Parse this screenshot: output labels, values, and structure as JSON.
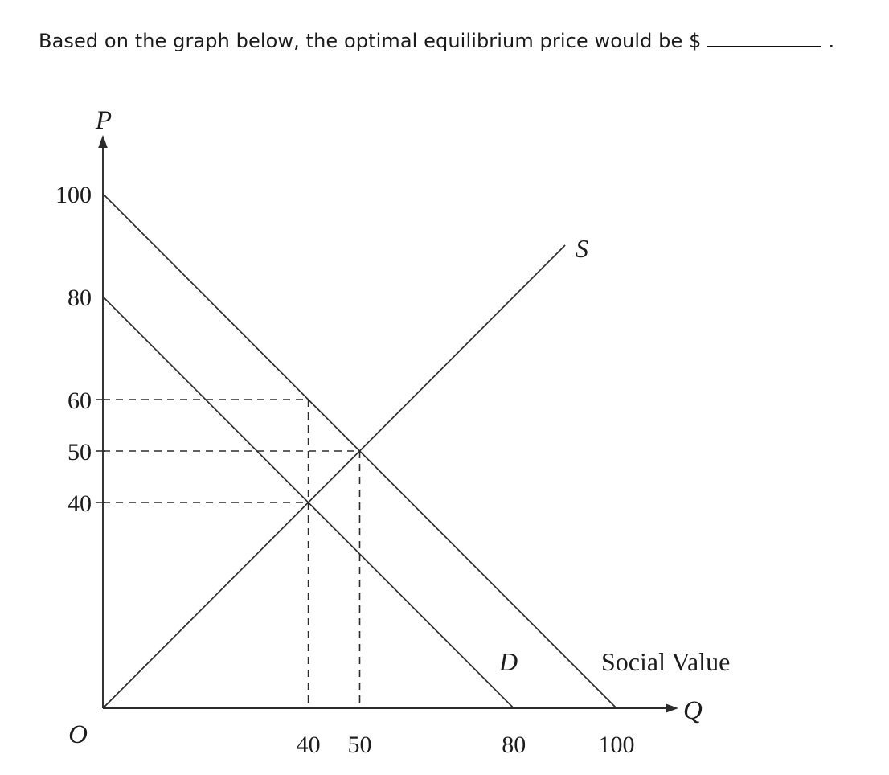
{
  "question": {
    "prefix": "Based on the graph below, the optimal equilibrium price would be $",
    "suffix": "."
  },
  "chart_data": {
    "type": "line",
    "title": "",
    "xlabel": "Q",
    "ylabel": "P",
    "origin_label": "O",
    "xlim": [
      0,
      110
    ],
    "ylim": [
      0,
      110
    ],
    "grid": false,
    "x_tick_labels": [
      40,
      50,
      80,
      100
    ],
    "y_tick_labels": [
      100,
      80,
      60,
      50,
      40
    ],
    "y_tick_marks": [
      60,
      50,
      40
    ],
    "series": [
      {
        "name": "S",
        "role": "supply",
        "points": [
          [
            0,
            0
          ],
          [
            90,
            90
          ]
        ]
      },
      {
        "name": "D",
        "role": "demand",
        "points": [
          [
            0,
            80
          ],
          [
            80,
            0
          ]
        ]
      },
      {
        "name": "Social Value",
        "role": "social-value",
        "points": [
          [
            0,
            100
          ],
          [
            100,
            0
          ]
        ]
      }
    ],
    "dashed_guides": [
      {
        "from": [
          0,
          60
        ],
        "to": [
          40,
          60
        ]
      },
      {
        "from": [
          40,
          60
        ],
        "to": [
          40,
          0
        ]
      },
      {
        "from": [
          0,
          50
        ],
        "to": [
          50,
          50
        ]
      },
      {
        "from": [
          50,
          50
        ],
        "to": [
          50,
          0
        ]
      },
      {
        "from": [
          0,
          40
        ],
        "to": [
          40,
          40
        ]
      }
    ],
    "key_points": [
      [
        40,
        40
      ],
      [
        50,
        50
      ],
      [
        40,
        60
      ]
    ]
  }
}
